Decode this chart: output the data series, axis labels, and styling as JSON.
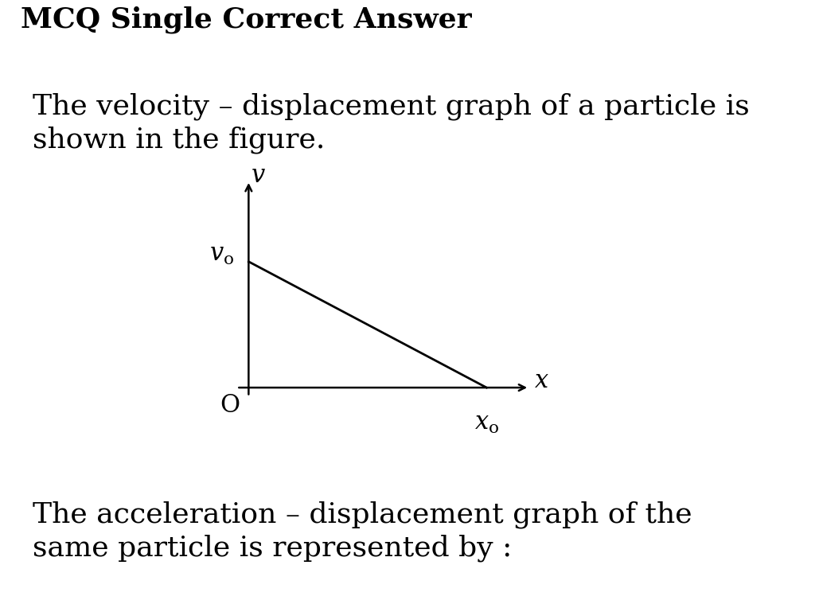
{
  "background_color": "#ffffff",
  "header_bg_color": "#d6f0f8",
  "header_border_color": "#1565C0",
  "header_text": "MCQ Single Correct Answer",
  "header_text_color": "#000000",
  "main_text_line1": "The velocity – displacement graph of a particle is",
  "main_text_line2": "shown in the figure.",
  "bottom_text_line1": "The acceleration – displacement graph of the",
  "bottom_text_line2": "same particle is represented by :",
  "origin_label": "O",
  "x_axis_label": "x",
  "y_axis_label": "v",
  "v0_label_main": "v",
  "v0_label_sub": "o",
  "x0_label_main": "x",
  "x0_label_sub": "o",
  "line_color": "#000000",
  "axis_color": "#000000",
  "text_color": "#000000",
  "main_fontsize": 26,
  "label_fontsize": 22,
  "graph_label_fontsize": 20,
  "header_fontsize": 26
}
